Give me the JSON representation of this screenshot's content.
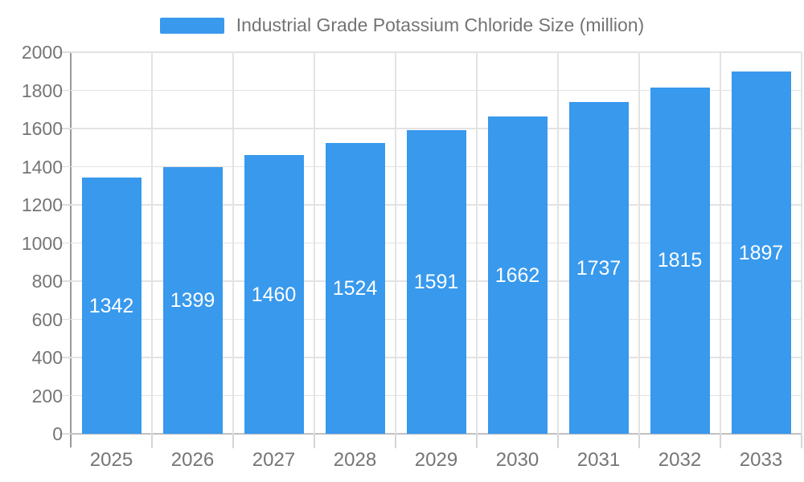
{
  "legend": {
    "label": "Industrial Grade Potassium Chloride Size (million)",
    "swatch_color": "#3899ed"
  },
  "chart_data": {
    "type": "bar",
    "title": "Industrial Grade Potassium Chloride Size (million)",
    "categories": [
      "2025",
      "2026",
      "2027",
      "2028",
      "2029",
      "2030",
      "2031",
      "2032",
      "2033"
    ],
    "values": [
      1342,
      1399,
      1460,
      1524,
      1591,
      1662,
      1737,
      1815,
      1897
    ],
    "xlabel": "",
    "ylabel": "",
    "ylim": [
      0,
      2000
    ],
    "ytick_step": 200,
    "ytick_labels": [
      "0",
      "200",
      "400",
      "600",
      "800",
      "1000",
      "1200",
      "1400",
      "1600",
      "1800",
      "2000"
    ],
    "grid": true,
    "legend_position": "top",
    "bar_color": "#3899ed",
    "value_label_color": "#ffffff",
    "axis_text_color": "#757575"
  }
}
